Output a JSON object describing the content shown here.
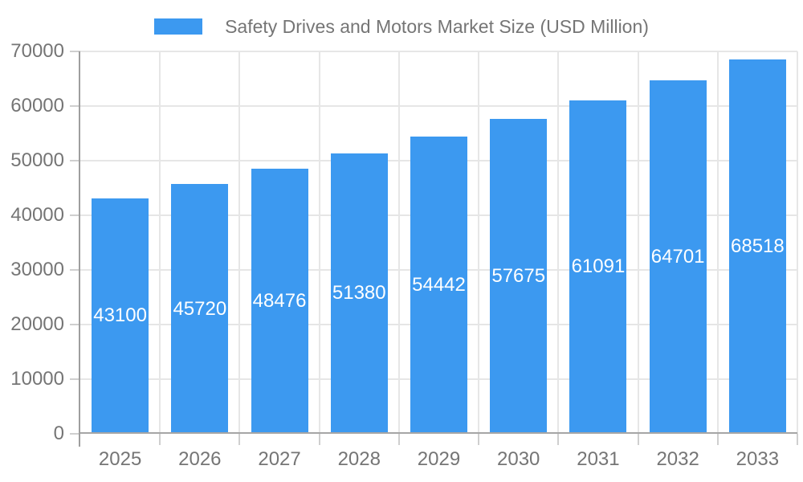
{
  "legend": {
    "label": "Safety Drives and Motors Market Size (USD Million)"
  },
  "chart_data": {
    "type": "bar",
    "title": "Safety Drives and Motors Market Size (USD Million)",
    "categories": [
      "2025",
      "2026",
      "2027",
      "2028",
      "2029",
      "2030",
      "2031",
      "2032",
      "2033"
    ],
    "values": [
      43100,
      45720,
      48476,
      51380,
      54442,
      57675,
      61091,
      64701,
      68518
    ],
    "xlabel": "",
    "ylabel": "",
    "ylim": [
      0,
      70000
    ],
    "yticks": [
      0,
      10000,
      20000,
      30000,
      40000,
      50000,
      60000,
      70000
    ],
    "grid": true,
    "legend_position": "top",
    "colors": {
      "bar": "#3C99F0",
      "bar_label": "#FFFFFF",
      "axis_text": "#757575",
      "grid_line": "#E6E6E6",
      "axis_line": "#A6A6A6",
      "tick": "#CFCFCF",
      "background": "#FFFFFF"
    }
  }
}
